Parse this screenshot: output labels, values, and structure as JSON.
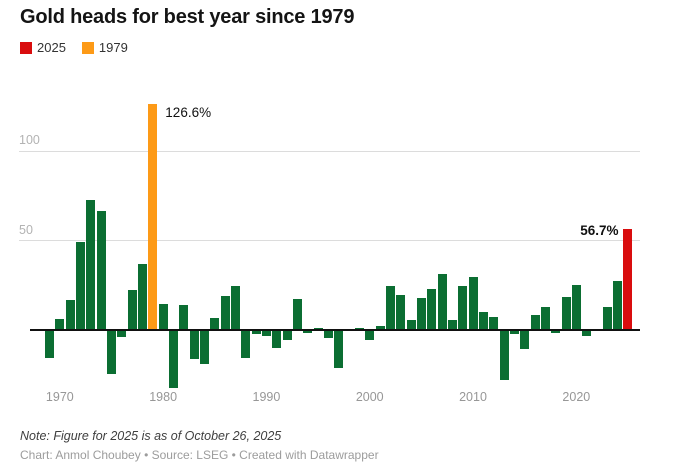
{
  "header": {
    "title": "Gold heads for best year since 1979"
  },
  "chart_data": {
    "type": "bar",
    "title": "Gold heads for best year since 1979",
    "unit": "%",
    "legend": [
      {
        "label": "2025",
        "color": "#d90d0e"
      },
      {
        "label": "1979",
        "color": "#fd9a17"
      }
    ],
    "bar_color": "#0b6e32",
    "highlight_colors": {
      "1979": "#fd9a17",
      "2025": "#d90d0e"
    },
    "years": [
      1969,
      1970,
      1971,
      1972,
      1973,
      1974,
      1975,
      1976,
      1977,
      1978,
      1979,
      1980,
      1981,
      1982,
      1983,
      1984,
      1985,
      1986,
      1987,
      1988,
      1989,
      1990,
      1991,
      1992,
      1993,
      1994,
      1995,
      1996,
      1997,
      1998,
      1999,
      2000,
      2001,
      2002,
      2003,
      2004,
      2005,
      2006,
      2007,
      2008,
      2009,
      2010,
      2011,
      2012,
      2013,
      2014,
      2015,
      2016,
      2017,
      2018,
      2019,
      2020,
      2021,
      2022,
      2023,
      2024,
      2025
    ],
    "values": [
      -15.7,
      6.2,
      16.9,
      49.0,
      73.0,
      66.8,
      -24.8,
      -4.1,
      22.6,
      37.0,
      126.6,
      14.8,
      -32.2,
      13.9,
      -16.3,
      -19.2,
      6.8,
      18.9,
      24.5,
      -15.7,
      -2.2,
      -3.3,
      -10.1,
      -5.8,
      17.3,
      -1.9,
      1.1,
      -4.6,
      -21.5,
      -0.8,
      0.9,
      -5.4,
      2.5,
      24.8,
      19.6,
      5.4,
      17.9,
      23.2,
      31.4,
      5.8,
      24.4,
      29.6,
      10.1,
      7.1,
      -27.8,
      -2.2,
      -10.4,
      8.5,
      13.1,
      -1.6,
      18.3,
      25.1,
      -3.6,
      -0.3,
      13.1,
      27.2,
      56.7
    ],
    "annotations": [
      {
        "year": 1979,
        "label": "126.6%"
      },
      {
        "year": 2025,
        "label": "56.7%"
      }
    ],
    "y_ticks": [
      50,
      100
    ],
    "x_ticks": [
      1970,
      1980,
      1990,
      2000,
      2010,
      2020
    ],
    "ylim": [
      -35,
      130
    ],
    "grid": true,
    "legend_position": "top-left"
  },
  "footer": {
    "note": "Note: Figure for 2025 is as of October 26, 2025",
    "credit": "Chart: Anmol Choubey • Source: LSEG • Created with Datawrapper"
  }
}
